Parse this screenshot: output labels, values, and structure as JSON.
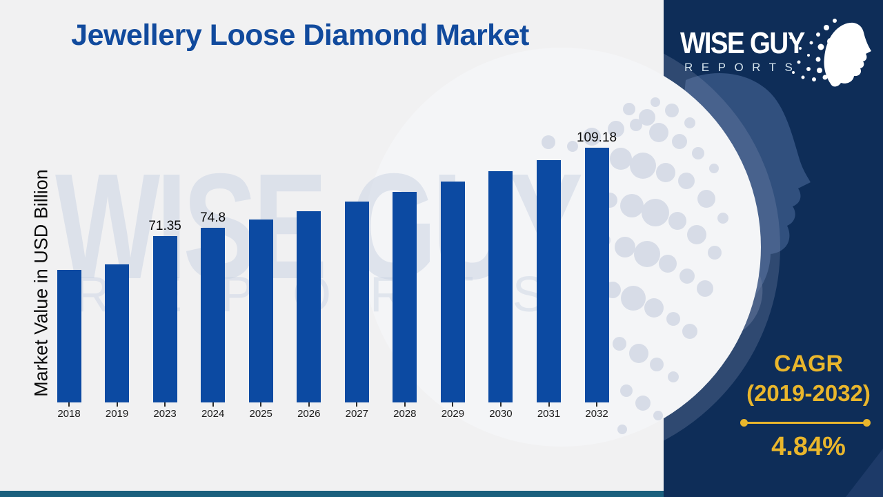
{
  "title": "Jewellery Loose Diamond Market",
  "chart_data": {
    "type": "bar",
    "title": "Jewellery Loose Diamond Market",
    "xlabel": "",
    "ylabel": "Market Value in USD Billion",
    "ylim": [
      0,
      120
    ],
    "grid": false,
    "legend": null,
    "categories": [
      "2018",
      "2019",
      "2023",
      "2024",
      "2025",
      "2026",
      "2027",
      "2028",
      "2029",
      "2030",
      "2031",
      "2032"
    ],
    "values": [
      56.8,
      59.1,
      71.35,
      74.8,
      78.4,
      82.2,
      86.2,
      90.4,
      94.8,
      99.3,
      104.1,
      109.18
    ],
    "bar_labels": [
      "",
      "",
      "71.35",
      "74.8",
      "",
      "",
      "",
      "",
      "",
      "",
      "",
      "109.18"
    ]
  },
  "watermark": {
    "line1": "WISE GUY",
    "line2": "REPORTS"
  },
  "logo": {
    "line1": "WISE GUY",
    "line2": "REPORTS"
  },
  "sidebar": {
    "cagr_label": "CAGR",
    "cagr_range": "(2019-2032)",
    "cagr_value": "4.84%"
  },
  "colors": {
    "title_blue": "#114a9d",
    "bar_blue": "#0c4aa2",
    "panel_navy": "#0e2d58",
    "accent_gold": "#e9b62c",
    "bottom_teal": "#1a5f7d"
  }
}
